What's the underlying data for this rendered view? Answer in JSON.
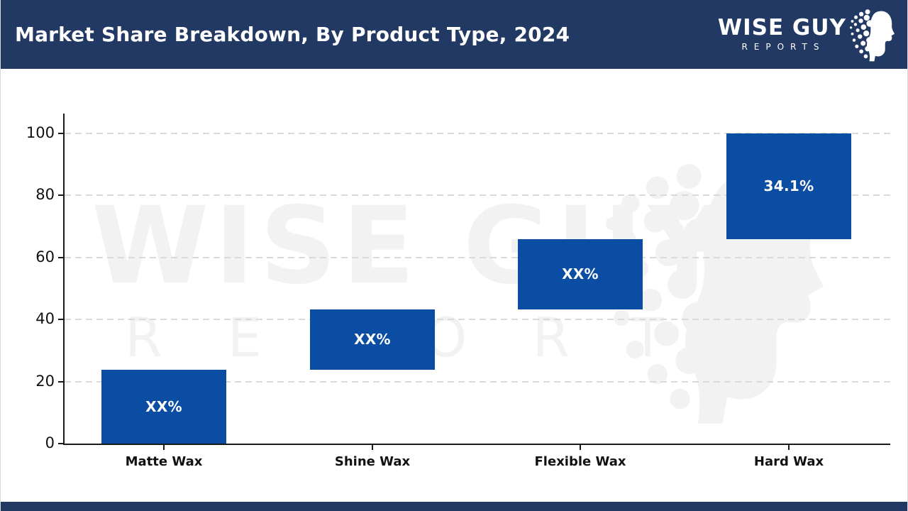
{
  "header": {
    "title": "Market Share Breakdown, By Product Type, 2024",
    "logo": {
      "line1": "WISE GUY",
      "line2": "REPORTS"
    }
  },
  "watermark": {
    "line1": "WISE GUY",
    "line2": "REPORTS"
  },
  "colors": {
    "header_bg": "#223963",
    "footer_bg": "#223963",
    "bar": "#0b4da2",
    "bar_label": "#ffffff",
    "gridline": "#dadada",
    "axis": "#1a1a1a",
    "watermark": "#f2f2f2"
  },
  "chart_data": {
    "type": "bar",
    "subtype": "floating-waterfall",
    "title": "Market Share Breakdown, By Product Type, 2024",
    "xlabel": "",
    "ylabel": "",
    "categories": [
      "Matte Wax",
      "Shine Wax",
      "Flexible Wax",
      "Hard Wax"
    ],
    "segments": [
      {
        "category": "Matte Wax",
        "start": 0,
        "end": 23.8,
        "size": 23.8,
        "label": "XX%"
      },
      {
        "category": "Shine Wax",
        "start": 23.8,
        "end": 43.2,
        "size": 19.4,
        "label": "XX%"
      },
      {
        "category": "Flexible Wax",
        "start": 43.2,
        "end": 65.9,
        "size": 22.7,
        "label": "XX%"
      },
      {
        "category": "Hard Wax",
        "start": 65.9,
        "end": 100.0,
        "size": 34.1,
        "label": "34.1%"
      }
    ],
    "yticks": [
      0,
      20,
      40,
      60,
      80,
      100
    ],
    "ytick_labels": [
      "0",
      "20",
      "40",
      "60",
      "80",
      "100"
    ],
    "ylim": [
      0,
      106
    ],
    "grid": "horizontal-dashed",
    "legend": "none"
  }
}
